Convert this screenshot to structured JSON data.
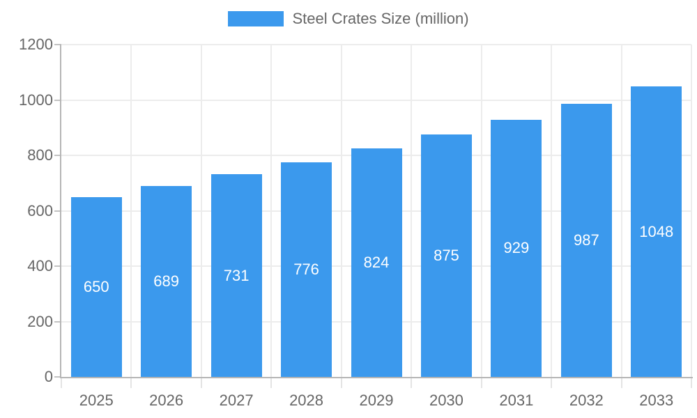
{
  "chart_data": {
    "type": "bar",
    "title": "Steel Crates Size (million)",
    "series": [
      {
        "name": "Steel Crates Size (million)",
        "values": [
          650,
          689,
          731,
          776,
          824,
          875,
          929,
          987,
          1048
        ]
      }
    ],
    "categories": [
      "2025",
      "2026",
      "2027",
      "2028",
      "2029",
      "2030",
      "2031",
      "2032",
      "2033"
    ],
    "xlabel": "",
    "ylabel": "",
    "ylim": [
      0,
      1200
    ],
    "yticks": [
      0,
      200,
      400,
      600,
      800,
      1000,
      1200
    ],
    "grid": true,
    "legend_position": "top",
    "bar_labels_shown": true,
    "colors": {
      "bar": "#3b99ed",
      "bar_value_text": "#ffffff",
      "axis_text": "#666666",
      "gridline": "#ececec",
      "axis_line": "#b5b5b5",
      "legend_text": "#666666"
    }
  }
}
